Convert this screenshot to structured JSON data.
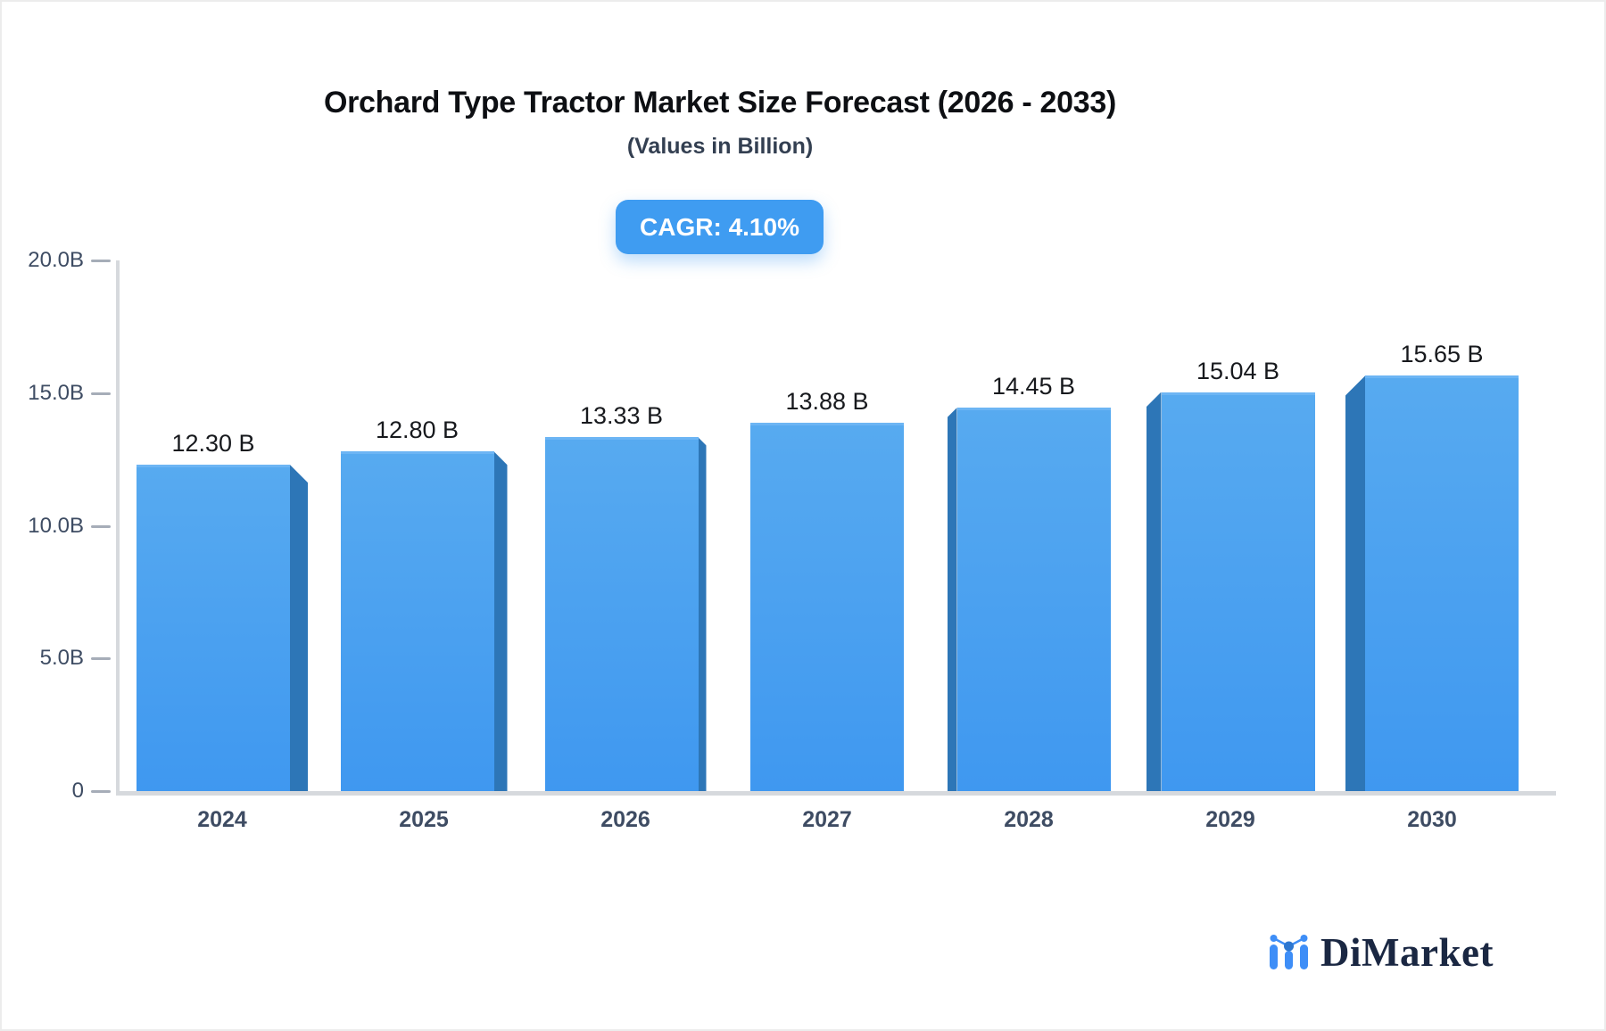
{
  "title": "Orchard Type Tractor Market Size Forecast (2026 - 2033)",
  "subtitle": "(Values in Billion)",
  "badge": {
    "label": "CAGR: 4.10%",
    "bg_color": "#3f9cf1",
    "text_color": "#ffffff"
  },
  "chart_data": {
    "type": "bar",
    "categories": [
      "2024",
      "2025",
      "2026",
      "2027",
      "2028",
      "2029",
      "2030"
    ],
    "values": [
      12.3,
      12.8,
      13.33,
      13.88,
      14.45,
      15.04,
      15.65
    ],
    "value_labels": [
      "12.30 B",
      "12.80 B",
      "13.33 B",
      "13.88 B",
      "14.45 B",
      "15.04 B",
      "15.65 B"
    ],
    "title": "Orchard Type Tractor Market Size Forecast (2026 - 2033)",
    "subtitle": "(Values in Billion)",
    "xlabel": "",
    "ylabel": "",
    "ylim": [
      0,
      20
    ],
    "ytick_step": 5,
    "ytick_labels": [
      "20.0B",
      "15.0B",
      "10.0B",
      "5.0B",
      "0"
    ],
    "ytick_values": [
      20,
      15,
      10,
      5,
      0
    ],
    "grid": false,
    "legend": false,
    "style_3d": "chamfered side face, vanishing point at center bar",
    "bar_color_top": "#57aaf0",
    "bar_color_bottom": "#3f98f0",
    "bar_top_highlight": "#6db5f4",
    "bar_side_color": "#2d76b7",
    "axis_line_color": "#d6d9dd",
    "tick_dash_color": "#a6adb8",
    "axis_text_color": "#3e4c63",
    "value_text_color": "#17191d"
  },
  "logo": {
    "text": "DiMarket",
    "icon": "bar-line-chart-logo-icon",
    "text_color": "#1a2742",
    "accent": "#3e8ef7"
  }
}
